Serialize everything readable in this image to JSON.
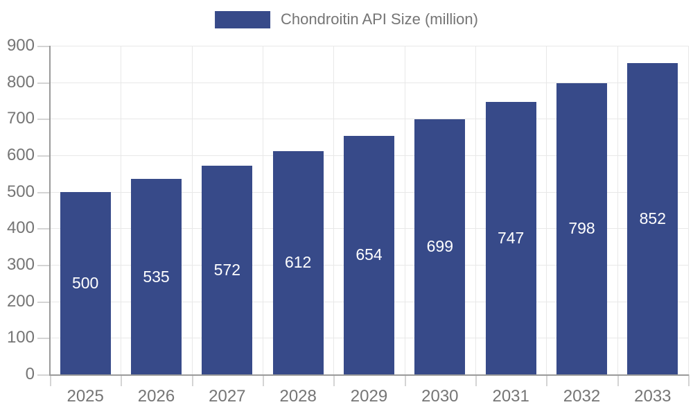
{
  "legend": {
    "label": "Chondroitin API Size (million)"
  },
  "colors": {
    "background": "#FFFFFF",
    "bar_fill": "#374A89",
    "bar_value_text": "#FFFFFF",
    "grid_line": "#E8E8E8",
    "axis_line": "#999999",
    "tick_mark": "#D4D4D4",
    "axis_label_text": "#757575",
    "legend_text": "#757575"
  },
  "chart_data": {
    "type": "bar",
    "title": "Chondroitin API Size (million)",
    "series_name": "Chondroitin API Size (million)",
    "categories": [
      "2025",
      "2026",
      "2027",
      "2028",
      "2029",
      "2030",
      "2031",
      "2032",
      "2033"
    ],
    "values": [
      500,
      535,
      572,
      612,
      654,
      699,
      747,
      798,
      852
    ],
    "xlabel": "",
    "ylabel": "",
    "ylim": [
      0,
      900
    ],
    "yticks": [
      0,
      100,
      200,
      300,
      400,
      500,
      600,
      700,
      800,
      900
    ],
    "grid": true,
    "legend_position": "top",
    "value_label_position": "inside-center"
  }
}
